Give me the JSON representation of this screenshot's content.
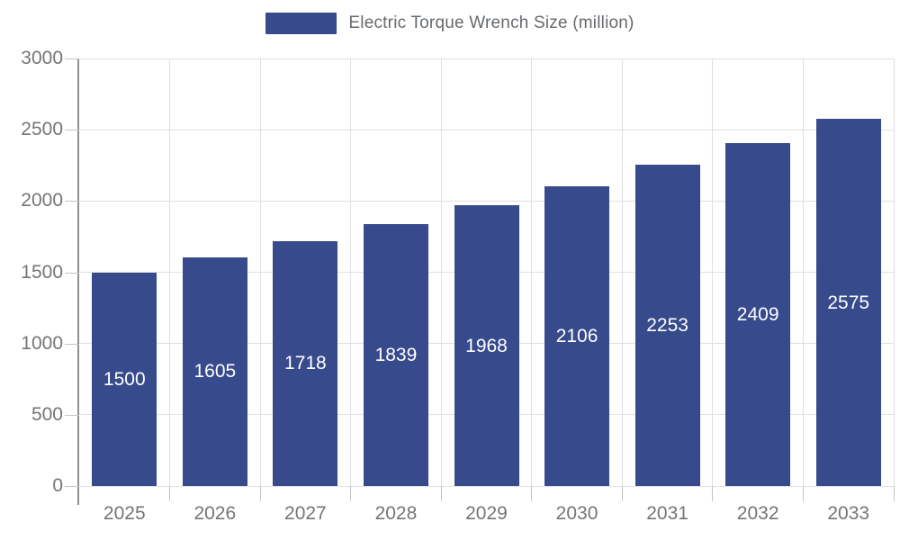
{
  "legend": {
    "label": "Electric Torque Wrench Size (million)"
  },
  "chart_data": {
    "type": "bar",
    "title": "Electric Torque Wrench Size (million)",
    "categories": [
      "2025",
      "2026",
      "2027",
      "2028",
      "2029",
      "2030",
      "2031",
      "2032",
      "2033"
    ],
    "values": [
      1500,
      1605,
      1718,
      1839,
      1968,
      2106,
      2253,
      2409,
      2575
    ],
    "xlabel": "",
    "ylabel": "",
    "ylim": [
      0,
      3000
    ],
    "yticks": [
      0,
      500,
      1000,
      1500,
      2000,
      2500,
      3000
    ],
    "grid": true,
    "legend_position": "top",
    "bar_color": "#374a8c",
    "value_label_color": "#ffffff",
    "axis_label_color": "#757575",
    "gridline_color": "#e0e0e0"
  }
}
